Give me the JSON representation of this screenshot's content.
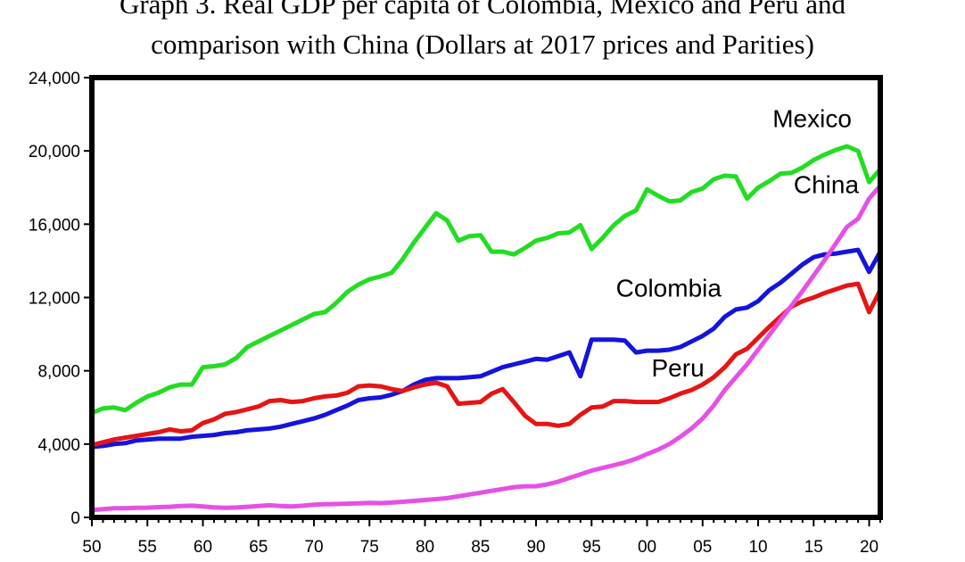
{
  "chart_data": {
    "type": "line",
    "title_line1": "Graph 3. Real GDP per capita of Colombia, Mexico and Peru and",
    "title_line2": "comparison with China (Dollars at 2017 prices and Parities)",
    "xlabel": "",
    "ylabel": "",
    "xlim": [
      1950,
      2021
    ],
    "ylim": [
      0,
      24000
    ],
    "y_ticks": [
      0,
      4000,
      8000,
      12000,
      16000,
      20000,
      24000
    ],
    "y_tick_labels": [
      "0",
      "4,000",
      "8,000",
      "12,000",
      "16,000",
      "20,000",
      "24,000"
    ],
    "x_ticks": [
      1950,
      1955,
      1960,
      1965,
      1970,
      1975,
      1980,
      1985,
      1990,
      1995,
      2000,
      2005,
      2010,
      2015,
      2020
    ],
    "x_tick_labels": [
      "50",
      "55",
      "60",
      "65",
      "70",
      "75",
      "80",
      "85",
      "90",
      "95",
      "00",
      "05",
      "10",
      "15",
      "20"
    ],
    "grid": false,
    "legend": "none",
    "series": [
      {
        "name": "Mexico",
        "color": "#22dd22",
        "x": [
          1950,
          1951,
          1952,
          1953,
          1954,
          1955,
          1956,
          1957,
          1958,
          1959,
          1960,
          1961,
          1962,
          1963,
          1964,
          1965,
          1966,
          1967,
          1968,
          1969,
          1970,
          1971,
          1972,
          1973,
          1974,
          1975,
          1976,
          1977,
          1978,
          1979,
          1980,
          1981,
          1982,
          1983,
          1984,
          1985,
          1986,
          1987,
          1988,
          1989,
          1990,
          1991,
          1992,
          1993,
          1994,
          1995,
          1996,
          1997,
          1998,
          1999,
          2000,
          2001,
          2002,
          2003,
          2004,
          2005,
          2006,
          2007,
          2008,
          2009,
          2010,
          2011,
          2012,
          2013,
          2014,
          2015,
          2016,
          2017,
          2018,
          2019,
          2020,
          2021
        ],
        "values": [
          5700,
          5950,
          6000,
          5850,
          6250,
          6600,
          6800,
          7100,
          7250,
          7250,
          8200,
          8250,
          8350,
          8700,
          9300,
          9600,
          9900,
          10200,
          10500,
          10800,
          11100,
          11200,
          11700,
          12300,
          12700,
          13000,
          13150,
          13350,
          14100,
          15000,
          15800,
          16600,
          16200,
          15100,
          15350,
          15400,
          14500,
          14500,
          14350,
          14700,
          15100,
          15250,
          15500,
          15550,
          15950,
          14650,
          15250,
          15950,
          16450,
          16750,
          17900,
          17550,
          17250,
          17300,
          17750,
          17950,
          18450,
          18650,
          18600,
          17400,
          18000,
          18350,
          18750,
          18800,
          19100,
          19500,
          19800,
          20050,
          20250,
          20000,
          18300,
          19000
        ]
      },
      {
        "name": "Colombia",
        "color": "#1414dc",
        "x": [
          1950,
          1951,
          1952,
          1953,
          1954,
          1955,
          1956,
          1957,
          1958,
          1959,
          1960,
          1961,
          1962,
          1963,
          1964,
          1965,
          1966,
          1967,
          1968,
          1969,
          1970,
          1971,
          1972,
          1973,
          1974,
          1975,
          1976,
          1977,
          1978,
          1979,
          1980,
          1981,
          1982,
          1983,
          1984,
          1985,
          1986,
          1987,
          1988,
          1989,
          1990,
          1991,
          1992,
          1993,
          1994,
          1995,
          1996,
          1997,
          1998,
          1999,
          2000,
          2001,
          2002,
          2003,
          2004,
          2005,
          2006,
          2007,
          2008,
          2009,
          2010,
          2011,
          2012,
          2013,
          2014,
          2015,
          2016,
          2017,
          2018,
          2019,
          2020,
          2021
        ],
        "values": [
          3850,
          3900,
          4000,
          4050,
          4200,
          4250,
          4300,
          4300,
          4300,
          4400,
          4450,
          4500,
          4600,
          4650,
          4750,
          4800,
          4850,
          4950,
          5100,
          5250,
          5400,
          5600,
          5850,
          6100,
          6400,
          6500,
          6550,
          6700,
          6900,
          7250,
          7500,
          7600,
          7600,
          7600,
          7650,
          7700,
          7950,
          8200,
          8350,
          8500,
          8650,
          8600,
          8800,
          9000,
          7700,
          9700,
          9700,
          9700,
          9650,
          9000,
          9100,
          9100,
          9150,
          9300,
          9600,
          9900,
          10300,
          10950,
          11350,
          11450,
          11800,
          12400,
          12800,
          13300,
          13800,
          14200,
          14350,
          14400,
          14500,
          14600,
          13400,
          14500
        ]
      },
      {
        "name": "Peru",
        "color": "#e61414",
        "x": [
          1950,
          1951,
          1952,
          1953,
          1954,
          1955,
          1956,
          1957,
          1958,
          1959,
          1960,
          1961,
          1962,
          1963,
          1964,
          1965,
          1966,
          1967,
          1968,
          1969,
          1970,
          1971,
          1972,
          1973,
          1974,
          1975,
          1976,
          1977,
          1978,
          1979,
          1980,
          1981,
          1982,
          1983,
          1984,
          1985,
          1986,
          1987,
          1988,
          1989,
          1990,
          1991,
          1992,
          1993,
          1994,
          1995,
          1996,
          1997,
          1998,
          1999,
          2000,
          2001,
          2002,
          2003,
          2004,
          2005,
          2006,
          2007,
          2008,
          2009,
          2010,
          2011,
          2012,
          2013,
          2014,
          2015,
          2016,
          2017,
          2018,
          2019,
          2020,
          2021
        ],
        "values": [
          3950,
          4100,
          4250,
          4350,
          4450,
          4550,
          4650,
          4800,
          4700,
          4750,
          5150,
          5350,
          5650,
          5750,
          5900,
          6050,
          6350,
          6400,
          6300,
          6350,
          6500,
          6600,
          6650,
          6800,
          7150,
          7200,
          7150,
          7000,
          6900,
          7100,
          7250,
          7350,
          7150,
          6200,
          6250,
          6300,
          6750,
          7000,
          6300,
          5550,
          5100,
          5100,
          5000,
          5100,
          5600,
          6000,
          6050,
          6350,
          6350,
          6300,
          6300,
          6300,
          6500,
          6750,
          6950,
          7250,
          7650,
          8200,
          8900,
          9200,
          9800,
          10400,
          10950,
          11500,
          11800,
          12000,
          12250,
          12450,
          12650,
          12750,
          11200,
          12400
        ]
      },
      {
        "name": "China",
        "color": "#e650e6",
        "x": [
          1950,
          1951,
          1952,
          1953,
          1954,
          1955,
          1956,
          1957,
          1958,
          1959,
          1960,
          1961,
          1962,
          1963,
          1964,
          1965,
          1966,
          1967,
          1968,
          1969,
          1970,
          1971,
          1972,
          1973,
          1974,
          1975,
          1976,
          1977,
          1978,
          1979,
          1980,
          1981,
          1982,
          1983,
          1984,
          1985,
          1986,
          1987,
          1988,
          1989,
          1990,
          1991,
          1992,
          1993,
          1994,
          1995,
          1996,
          1997,
          1998,
          1999,
          2000,
          2001,
          2002,
          2003,
          2004,
          2005,
          2006,
          2007,
          2008,
          2009,
          2010,
          2011,
          2012,
          2013,
          2014,
          2015,
          2016,
          2017,
          2018,
          2019,
          2020,
          2021
        ],
        "values": [
          400,
          450,
          500,
          500,
          520,
          530,
          560,
          580,
          620,
          640,
          600,
          550,
          520,
          540,
          580,
          620,
          660,
          620,
          600,
          640,
          690,
          720,
          730,
          750,
          770,
          790,
          780,
          810,
          850,
          900,
          950,
          1000,
          1050,
          1150,
          1250,
          1350,
          1450,
          1550,
          1650,
          1700,
          1700,
          1800,
          1950,
          2150,
          2350,
          2550,
          2700,
          2850,
          3000,
          3200,
          3450,
          3700,
          4000,
          4400,
          4850,
          5400,
          6100,
          6950,
          7650,
          8350,
          9150,
          9950,
          10750,
          11550,
          12350,
          13200,
          14050,
          14950,
          15850,
          16300,
          17400,
          18100
        ]
      }
    ],
    "annotations": [
      {
        "text": "Mexico",
        "x": 2011.3,
        "y": 21300
      },
      {
        "text": "China",
        "x": 2013.2,
        "y": 17700
      },
      {
        "text": "Colombia",
        "x": 1997.2,
        "y": 12050
      },
      {
        "text": "Peru",
        "x": 2000.4,
        "y": 7700
      }
    ]
  }
}
